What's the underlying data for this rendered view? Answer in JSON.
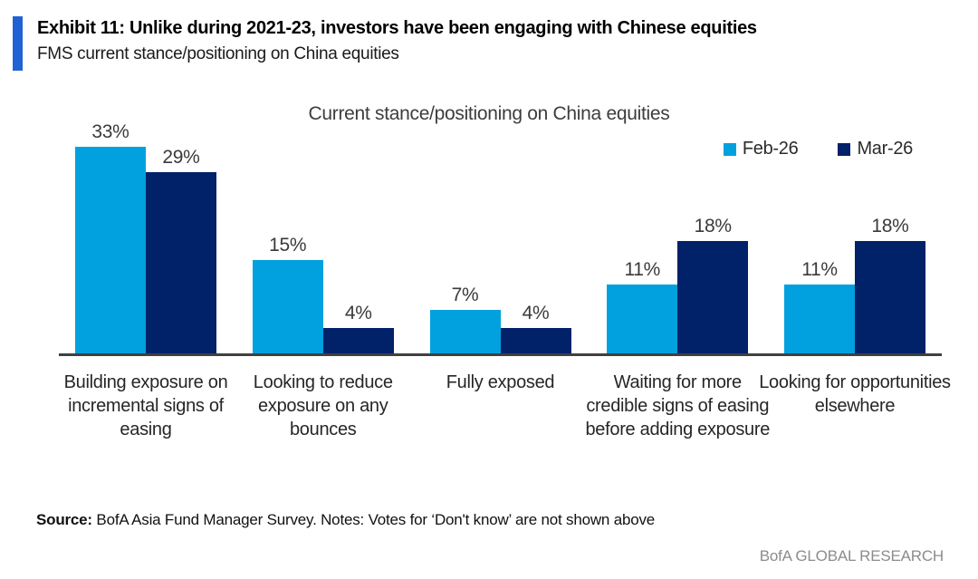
{
  "header": {
    "exhibit_title": "Exhibit 11: Unlike during 2021-23, investors have been engaging with Chinese equities",
    "subtitle": "FMS current stance/positioning on China equities"
  },
  "chart_data": {
    "type": "bar",
    "title": "Current stance/positioning on China equities",
    "categories": [
      "Building exposure on incremental signs of easing",
      "Looking to reduce exposure on any bounces",
      "Fully exposed",
      "Waiting for more credible signs of easing before adding exposure",
      "Looking for opportunities elsewhere"
    ],
    "series": [
      {
        "name": "Feb-26",
        "color": "#00A1DE",
        "values": [
          33,
          15,
          7,
          11,
          11
        ]
      },
      {
        "name": "Mar-26",
        "color": "#012169",
        "values": [
          29,
          4,
          4,
          18,
          18
        ]
      }
    ],
    "value_suffix": "%",
    "ylim": [
      0,
      36
    ],
    "grid": false,
    "legend_position": "top-right",
    "data_labels": true
  },
  "footer": {
    "source_label": "Source:",
    "source_text": " BofA Asia Fund Manager Survey. Notes: Votes for ‘Don't know’ are not shown above",
    "branding": "BofA GLOBAL RESEARCH"
  },
  "colors": {
    "accent_bar": "#2062D4",
    "axis_line": "#404040"
  }
}
